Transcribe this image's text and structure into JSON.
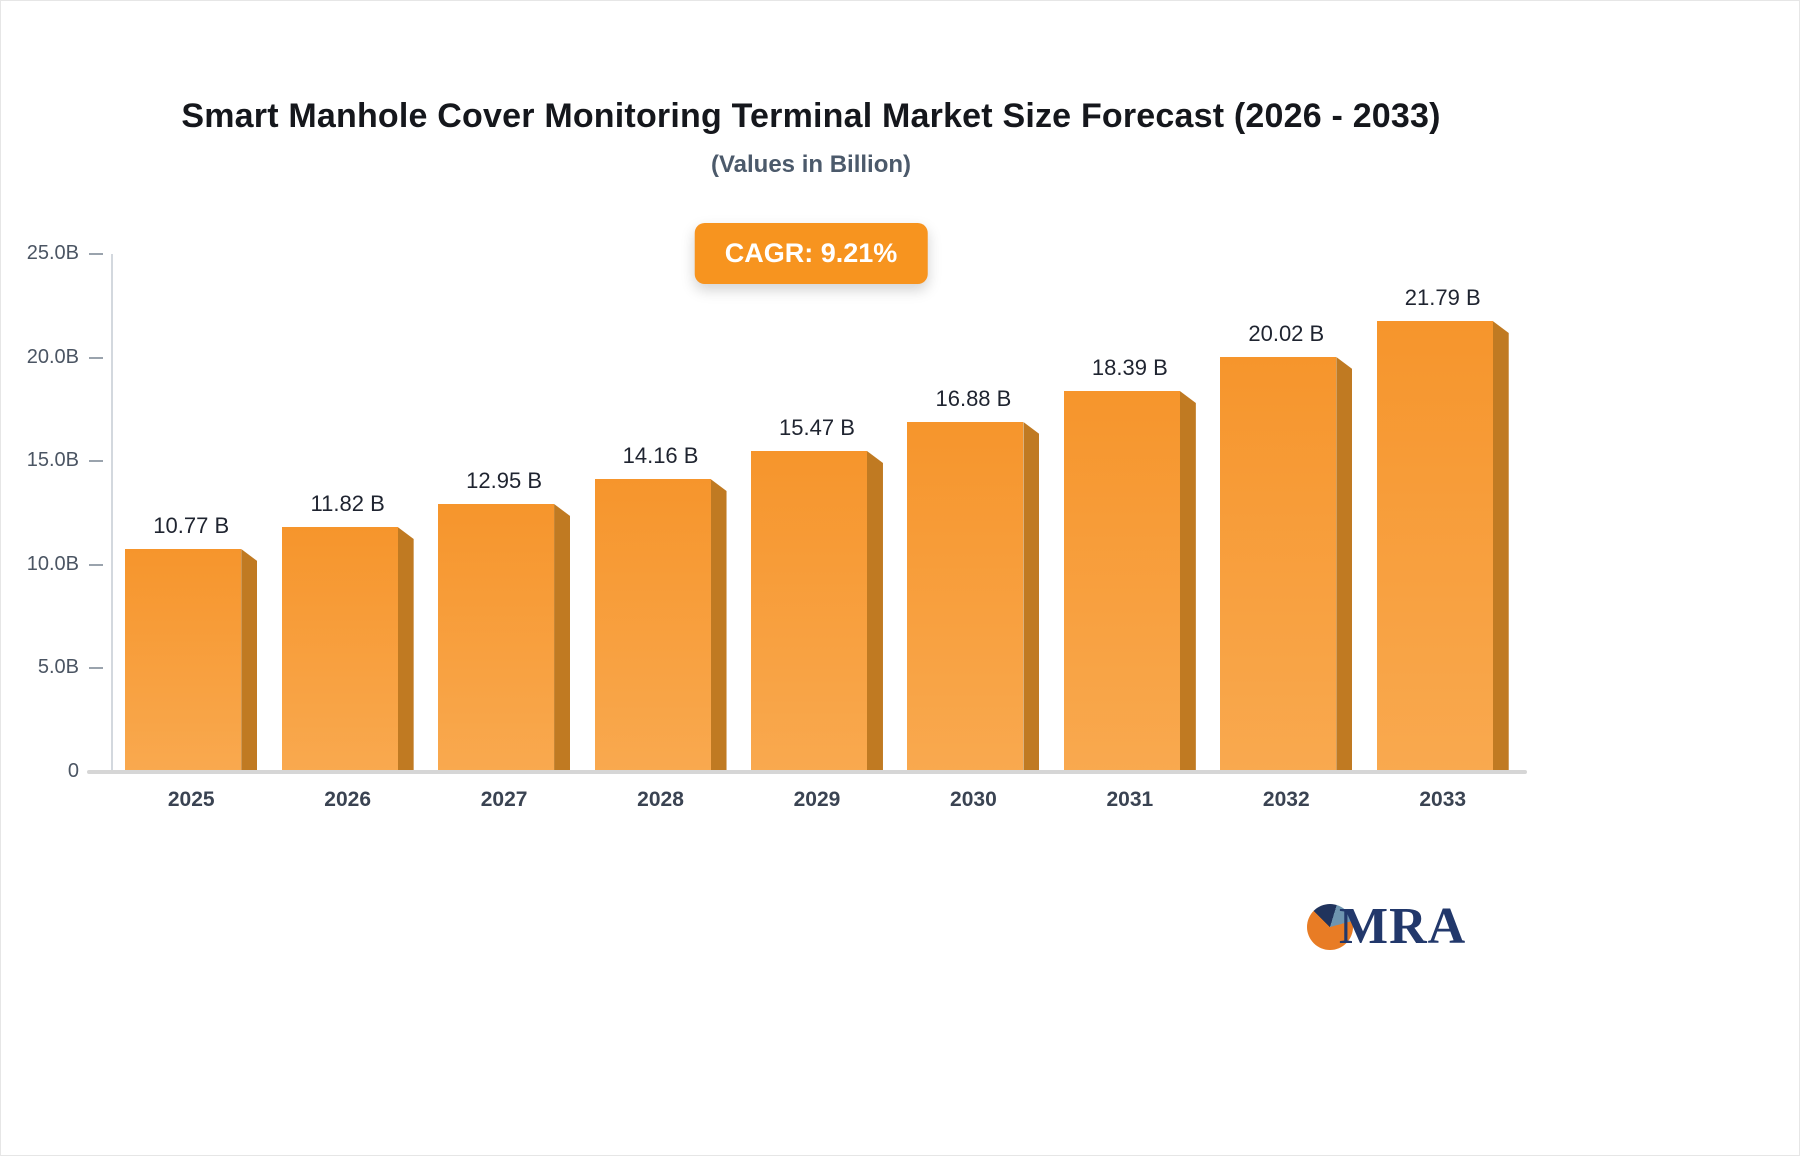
{
  "page": {
    "title": "Smart Manhole Cover Monitoring Terminal Market Size Forecast (2026 - 2033)",
    "subtitle": "(Values in Billion)",
    "cagr_label": "CAGR: 9.21%",
    "brand": "MRA"
  },
  "chart_data": {
    "type": "bar",
    "title": "Smart Manhole Cover Monitoring Terminal Market Size Forecast (2026 - 2033)",
    "subtitle": "(Values in Billion)",
    "cagr": "9.21%",
    "categories": [
      "2025",
      "2026",
      "2027",
      "2028",
      "2029",
      "2030",
      "2031",
      "2032",
      "2033"
    ],
    "values": [
      10.77,
      11.82,
      12.95,
      14.16,
      15.47,
      16.88,
      18.39,
      20.02,
      21.79
    ],
    "value_labels": [
      "10.77 B",
      "11.82 B",
      "12.95 B",
      "14.16 B",
      "15.47 B",
      "16.88 B",
      "18.39 B",
      "20.02 B",
      "21.79 B"
    ],
    "xlabel": "",
    "ylabel": "",
    "ylim": [
      0,
      25
    ],
    "yticks": [
      0,
      5,
      10,
      15,
      20,
      25
    ],
    "ytick_labels": [
      "0",
      "5.0B",
      "10.0B",
      "15.0B",
      "20.0B",
      "25.0B"
    ],
    "grid": false,
    "legend": "none",
    "colors": {
      "bar_top": "#f6952c",
      "bar_bottom": "#f9a94f",
      "bar_side": "#c07a22",
      "accent_badge": "#f7941f",
      "axis_line": "#d3d8de",
      "baseline": "#d6d6d6"
    }
  }
}
